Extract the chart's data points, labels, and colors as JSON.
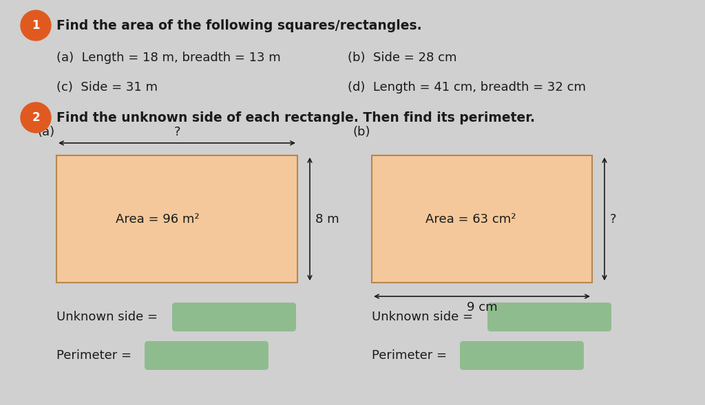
{
  "bg_color": "#d0d0d0",
  "title1_number": "1",
  "title1_text": "Find the area of the following squares/rectangles.",
  "q1a": "(a)  Length = 18 m, breadth = 13 m",
  "q1b": "(b)  Side = 28 cm",
  "q1c": "(c)  Side = 31 m",
  "q1d": "(d)  Length = 41 cm, breadth = 32 cm",
  "title2_number": "2",
  "title2_text": "Find the unknown side of each rectangle. Then find its perimeter.",
  "rect_a_label": "Area = 96 m²",
  "rect_a_height_label": "8 m",
  "rect_a_width_label": "?",
  "rect_b_label": "Area = 63 cm²",
  "rect_b_width_label": "9 cm",
  "rect_b_height_label": "?",
  "sub_a_label": "(a)",
  "sub_b_label": "(b)",
  "unknown_side_a": "Unknown side =",
  "unknown_side_b": "Unknown side =",
  "perimeter_a": "Perimeter =",
  "perimeter_b": "Perimeter =",
  "rect_fill_color": "#f4c89a",
  "rect_edge_color": "#b8864e",
  "answer_box_color": "#8fbc8f",
  "number_circle_color": "#e05a20",
  "number_circle_text_color": "#ffffff",
  "text_color": "#1a1a1a"
}
